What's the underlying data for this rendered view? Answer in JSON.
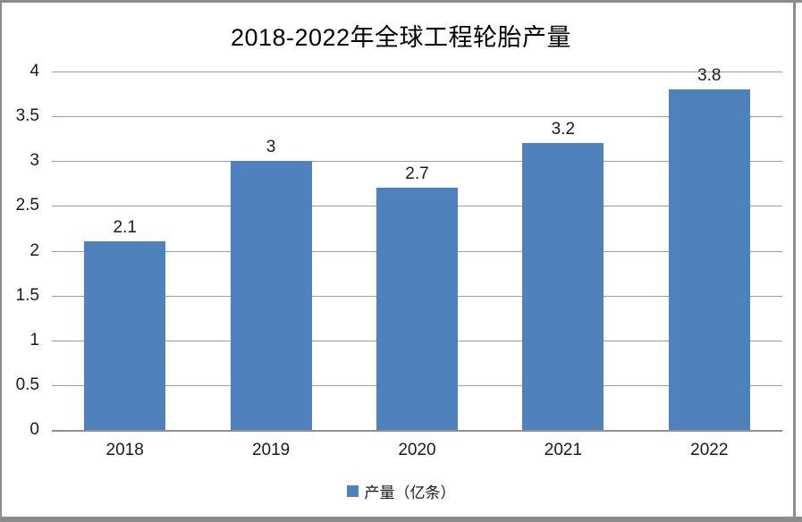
{
  "chart_data": {
    "type": "bar",
    "title": "2018-2022年全球工程轮胎产量",
    "categories": [
      "2018",
      "2019",
      "2020",
      "2021",
      "2022"
    ],
    "values": [
      2.1,
      3,
      2.7,
      3.2,
      3.8
    ],
    "data_labels": [
      "2.1",
      "3",
      "2.7",
      "3.2",
      "3.8"
    ],
    "xlabel": "",
    "ylabel": "",
    "ylim": [
      0,
      4
    ],
    "ytick_step": 0.5,
    "yticks": [
      "0",
      "0.5",
      "1",
      "1.5",
      "2",
      "2.5",
      "3",
      "3.5",
      "4"
    ],
    "grid": true,
    "legend": {
      "label": "产量（亿条）",
      "position": "bottom"
    },
    "colors": {
      "bar": "#4F81BD",
      "gridline": "#9c9c9c",
      "axis": "#8f8f8f",
      "text": "#1a1a1a",
      "frame": "#8c8c8c"
    }
  }
}
